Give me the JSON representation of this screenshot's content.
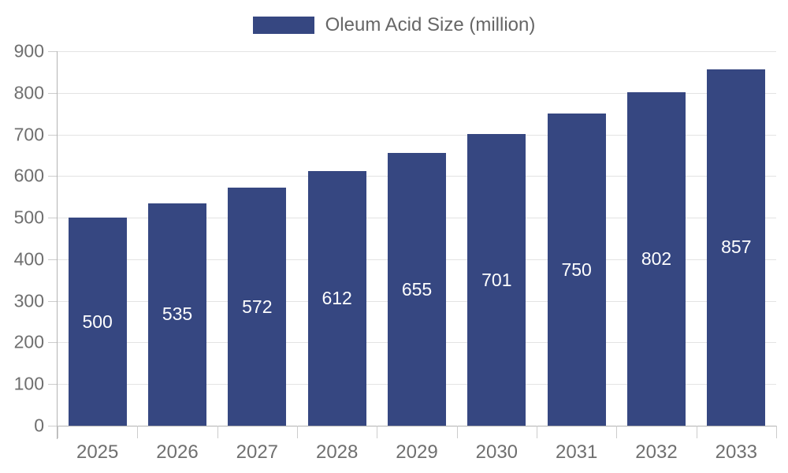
{
  "legend": {
    "label": "Oleum Acid Size (million)"
  },
  "chart_data": {
    "type": "bar",
    "title": "",
    "xlabel": "",
    "ylabel": "",
    "categories": [
      "2025",
      "2026",
      "2027",
      "2028",
      "2029",
      "2030",
      "2031",
      "2032",
      "2033"
    ],
    "series": [
      {
        "name": "Oleum Acid Size (million)",
        "values": [
          500,
          535,
          572,
          612,
          655,
          701,
          750,
          802,
          857
        ],
        "color": "#364781"
      }
    ],
    "ylim": [
      0,
      900
    ],
    "ytick_step": 100,
    "grid": true,
    "legend_position": "top",
    "value_labels": {
      "position": "center-of-bar",
      "color": "#ffffff"
    }
  },
  "style": {
    "bar_color": "#364781",
    "background": "#ffffff",
    "grid_color": "#e3e3e3",
    "axis_line_color": "#b3b3b3",
    "tick_mark_color": "#cccccc",
    "tick_label_color": "#6f6f6f",
    "legend_text_color": "#666666",
    "value_label_color": "#ffffff"
  }
}
